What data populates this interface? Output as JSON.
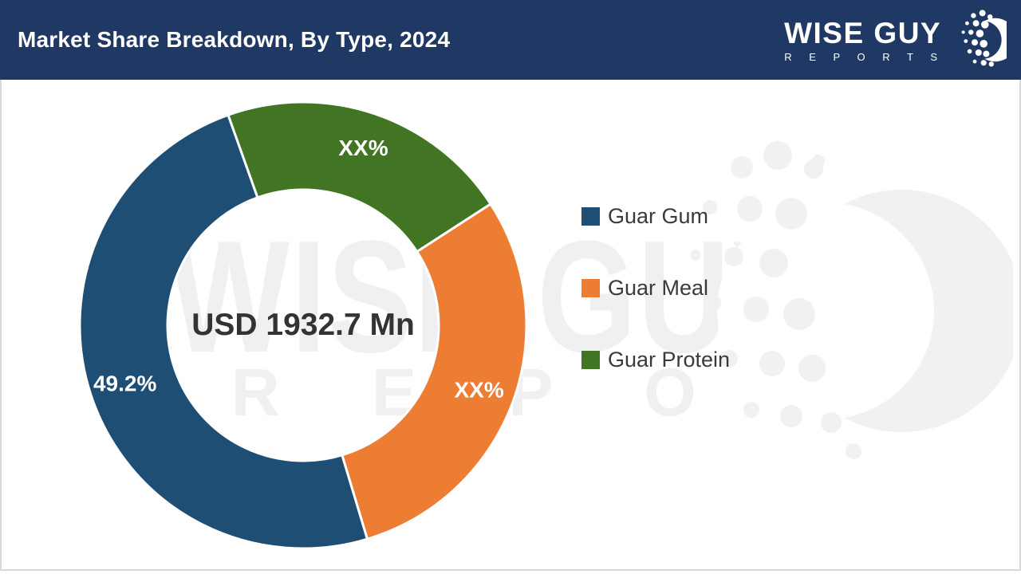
{
  "header": {
    "title": "Market Share Breakdown, By Type, 2024",
    "background_color": "#203864",
    "logo": {
      "line1": "WISE GUY",
      "line2": "R E P O R T S"
    }
  },
  "chart_data": {
    "type": "pie",
    "subtype": "donut",
    "title": "Market Share Breakdown, By Type, 2024",
    "center_label": "USD 1932.7 Mn",
    "legend_position": "right",
    "start_angle_deg": 109.6,
    "direction": "counterclockwise",
    "categories": [
      "Guar Gum",
      "Guar Meal",
      "Guar Protein"
    ],
    "slices": [
      {
        "label": "Guar Gum",
        "value_pct": 49.2,
        "display_label": "49.2%",
        "color": "#1f4e75"
      },
      {
        "label": "Guar Meal",
        "value_pct": 29.5,
        "display_label": "XX%",
        "color": "#ec7d33"
      },
      {
        "label": "Guar Protein",
        "value_pct": 21.3,
        "display_label": "XX%",
        "color": "#417524"
      }
    ]
  },
  "watermark": {
    "line1": "WISE GUY",
    "line2": "R E P O R T S"
  }
}
